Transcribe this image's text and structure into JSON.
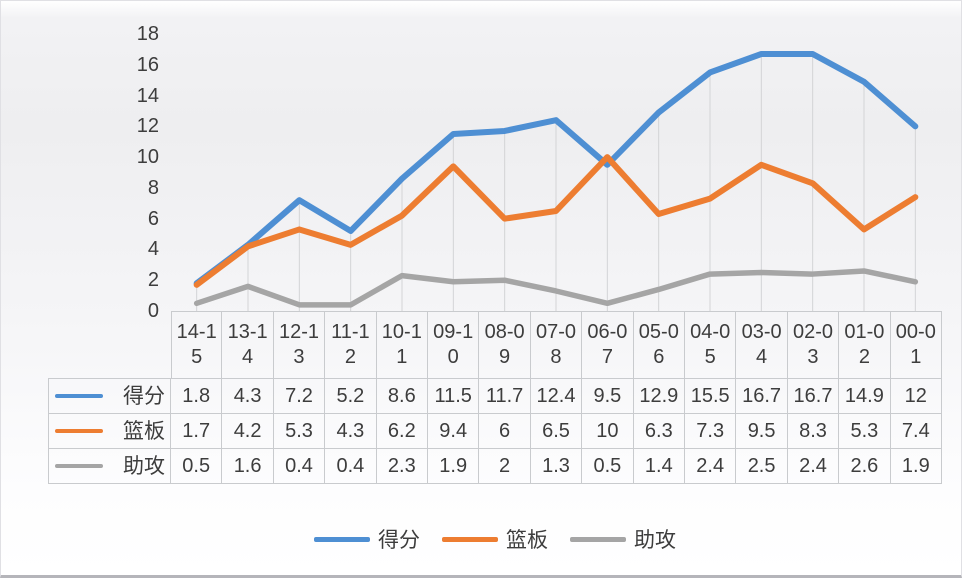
{
  "chart_data": {
    "type": "line",
    "title": "",
    "xlabel": "",
    "ylabel": "",
    "categories": [
      "14-15",
      "13-14",
      "12-13",
      "11-12",
      "10-11",
      "09-10",
      "08-09",
      "07-08",
      "06-07",
      "05-06",
      "04-05",
      "03-04",
      "02-03",
      "01-02",
      "00-01"
    ],
    "series": [
      {
        "name": "得分",
        "color": "#4e8fd3",
        "values": [
          1.8,
          4.3,
          7.2,
          5.2,
          8.6,
          11.5,
          11.7,
          12.4,
          9.5,
          12.9,
          15.5,
          16.7,
          16.7,
          14.9,
          12
        ]
      },
      {
        "name": "篮板",
        "color": "#ed7d31",
        "values": [
          1.7,
          4.2,
          5.3,
          4.3,
          6.2,
          9.4,
          6,
          6.5,
          10,
          6.3,
          7.3,
          9.5,
          8.3,
          5.3,
          7.4
        ]
      },
      {
        "name": "助攻",
        "color": "#a5a5a5",
        "values": [
          0.5,
          1.6,
          0.4,
          0.4,
          2.3,
          1.9,
          2,
          1.3,
          0.5,
          1.4,
          2.4,
          2.5,
          2.4,
          2.6,
          1.9
        ]
      }
    ],
    "y_ticks": [
      0,
      2,
      4,
      6,
      8,
      10,
      12,
      14,
      16,
      18
    ],
    "ylim": [
      0,
      18
    ],
    "grid": "vertical drop lines at each category point",
    "legend_position": "bottom",
    "data_table_shown": true,
    "colors": {
      "axis_text": "#3d3d3d",
      "drop_line": "#d3d4d6",
      "table_border": "#c9cbce"
    }
  }
}
